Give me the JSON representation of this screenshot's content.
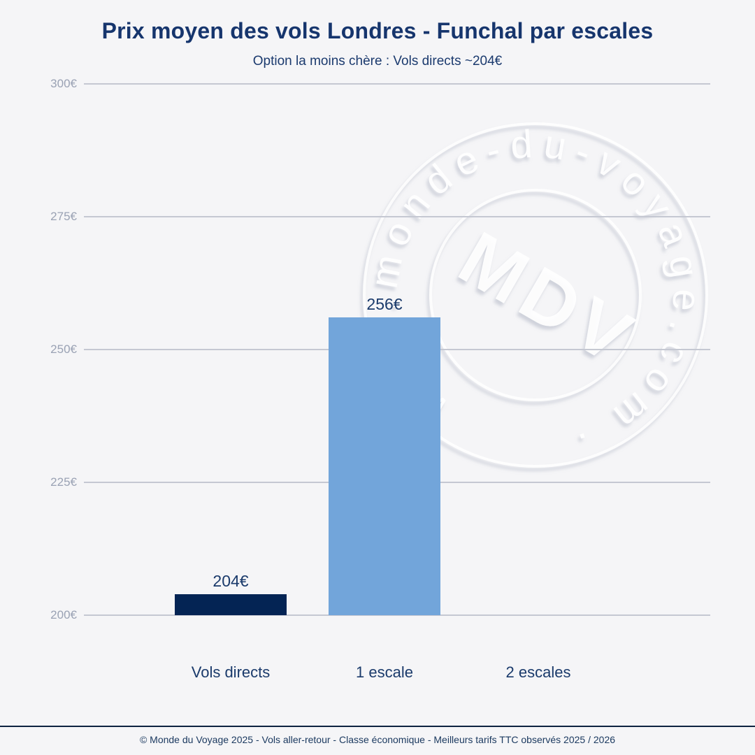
{
  "header": {
    "title": "Prix moyen des vols Londres - Funchal par escales",
    "subtitle": "Option la moins chère : Vols directs ~204€"
  },
  "chart_data": {
    "type": "bar",
    "title": "Prix moyen des vols Londres - Funchal par escales",
    "subtitle": "Option la moins chère : Vols directs ~204€",
    "categories": [
      "Vols directs",
      "1 escale",
      "2 escales"
    ],
    "values": [
      204,
      256,
      null
    ],
    "value_labels": [
      "204€",
      "256€",
      ""
    ],
    "bar_colors": [
      "#042454",
      "#72a5da",
      null
    ],
    "xlabel": "",
    "ylabel": "",
    "ylim": [
      200,
      300
    ],
    "yticks": [
      300,
      275,
      250,
      225,
      200
    ],
    "ytick_labels": [
      "300€",
      "275€",
      "250€",
      "225€",
      "200€"
    ],
    "grid": true,
    "legend": false,
    "currency": "€"
  },
  "watermark": {
    "ring_text": "www.monde-du-voyage.com ·",
    "center_text": "MDV"
  },
  "footer": {
    "credit": "© Monde du Voyage 2025 - Vols aller-retour - Classe économique - Meilleurs tarifs TTC observés 2025 / 2026"
  },
  "colors": {
    "background": "#f5f5f7",
    "title": "#16356d",
    "subtitle": "#1b3a6e",
    "axis_tick": "#9aa2b4",
    "gridline": "#c5c8d2",
    "bar_dark": "#042454",
    "bar_light": "#72a5da",
    "value_label": "#1a3a6b",
    "category_label": "#1a3a6b",
    "footer_line": "#0d2340",
    "footer_text": "#1c3a60",
    "watermark": "#ffffff"
  }
}
